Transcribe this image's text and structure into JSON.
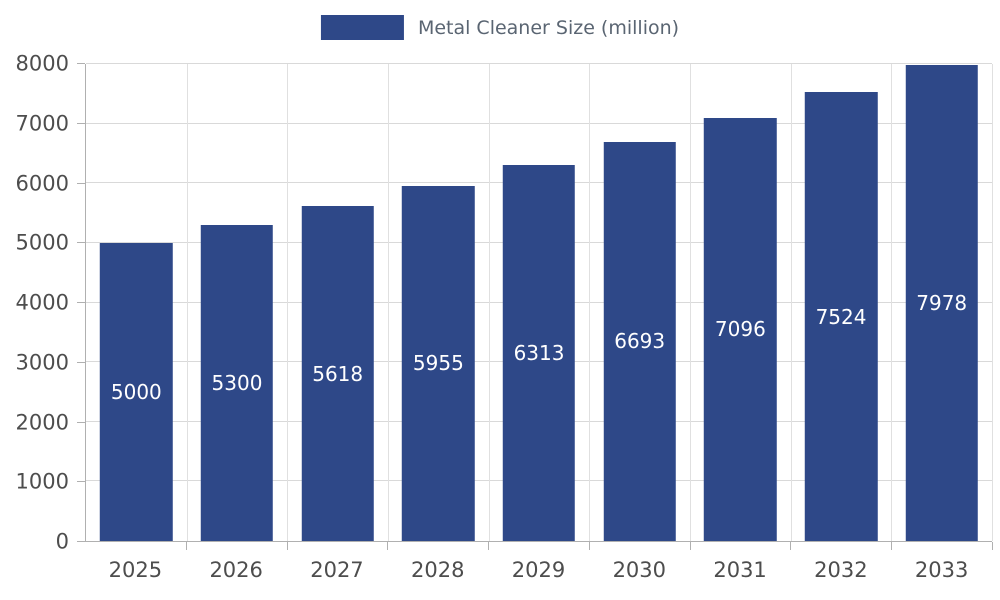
{
  "chart_data": {
    "type": "bar",
    "title": "",
    "legend": [
      {
        "label": "Metal Cleaner Size (million)",
        "color": "#2E4888"
      }
    ],
    "legend_position": "top",
    "categories": [
      "2025",
      "2026",
      "2027",
      "2028",
      "2029",
      "2030",
      "2031",
      "2032",
      "2033"
    ],
    "series": [
      {
        "name": "Metal Cleaner Size (million)",
        "values": [
          5000,
          5300,
          5618,
          5955,
          6313,
          6693,
          7096,
          7524,
          7978
        ]
      }
    ],
    "values": [
      5000,
      5300,
      5618,
      5955,
      6313,
      6693,
      7096,
      7524,
      7978
    ],
    "xlabel": "",
    "ylabel": "",
    "ylim": [
      0,
      8000
    ],
    "yticks": [
      0,
      1000,
      2000,
      3000,
      4000,
      5000,
      6000,
      7000,
      8000
    ],
    "grid": true,
    "bar_color": "#2E4888",
    "value_label_color": "#ffffff",
    "axis_text_color": "#4d4d4d"
  }
}
